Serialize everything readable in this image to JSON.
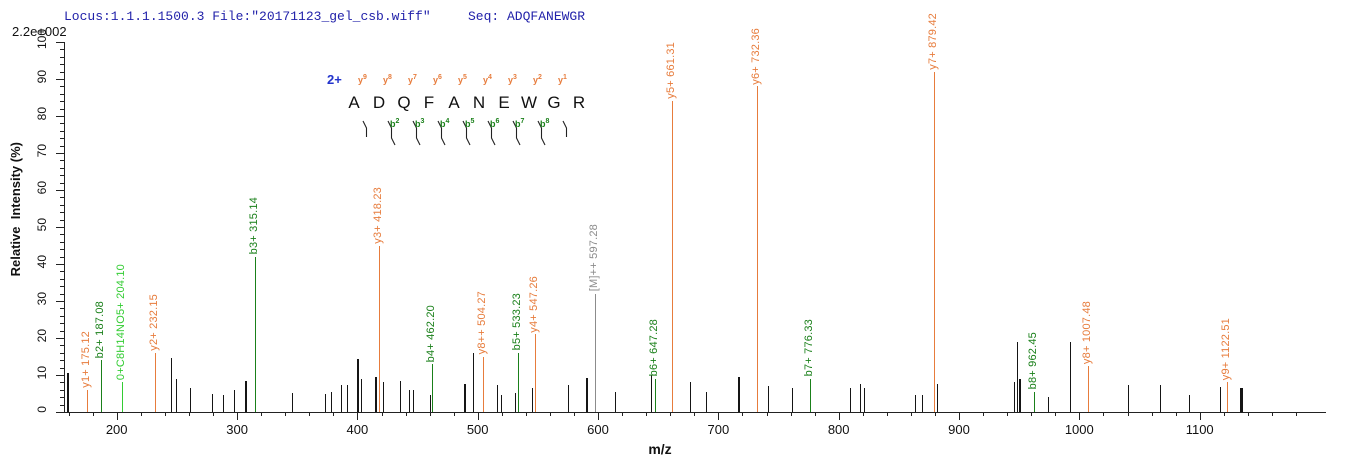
{
  "header": {
    "locus_text": "Locus:1.1.1.1500.3 File:\"20171123_gel_csb.wiff\"",
    "seq_text": "Seq: ADQFANEWGR",
    "intensity_scale": "2.2e+002"
  },
  "sequence_annotation": {
    "charge": "2+",
    "residues": [
      "A",
      "D",
      "Q",
      "F",
      "A",
      "N",
      "E",
      "W",
      "G",
      "R"
    ],
    "boundaries": [
      {
        "y": "y9",
        "b": null
      },
      {
        "y": "y8",
        "b": "b2"
      },
      {
        "y": "y7",
        "b": "b3"
      },
      {
        "y": "y6",
        "b": "b4"
      },
      {
        "y": "y5",
        "b": "b5"
      },
      {
        "y": "y4",
        "b": "b6"
      },
      {
        "y": "y3",
        "b": "b7"
      },
      {
        "y": "y2",
        "b": "b8"
      },
      {
        "y": "y1",
        "b": null
      }
    ]
  },
  "axes": {
    "x": {
      "title": "m/z",
      "min": 157,
      "max": 1200,
      "major_ticks": [
        200,
        300,
        400,
        500,
        600,
        700,
        800,
        900,
        1000,
        1100
      ],
      "minor_start": 160,
      "minor_end": 1180,
      "minor_step": 20
    },
    "y": {
      "title": "Relative  Intensity (%)",
      "min": 0,
      "max": 100,
      "major_step": 10,
      "minor_step": 2,
      "major_ticks": [
        0,
        10,
        20,
        30,
        40,
        50,
        60,
        70,
        80,
        90,
        100
      ]
    }
  },
  "colors": {
    "y_ion": "#e77c3c",
    "b_ion": "#1a801a",
    "neutral_loss": "#33cc33",
    "precursor": "#8c8c8c",
    "unassigned": "#151515",
    "header_text": "#2222aa",
    "charge_label": "#2233cc",
    "axis": "#222222"
  },
  "chart_data": {
    "type": "bar",
    "kind": "MS/MS fragment stick spectrum",
    "title": "Locus:1.1.1.1500.3 File:\"20171123_gel_csb.wiff\" Seq: ADQFANEWGR",
    "xlabel": "m/z",
    "ylabel": "Relative  Intensity (%)",
    "xlim": [
      157,
      1200
    ],
    "ylim": [
      0,
      100
    ],
    "grid": false,
    "legend": false,
    "type_legend": {
      "y": "y-ion",
      "b": "b-ion",
      "n": "neutral-loss",
      "p": "precursor",
      "u": "unassigned"
    },
    "peaks": [
      {
        "mz": 159,
        "i": 10.5,
        "t": "u",
        "w": 2
      },
      {
        "mz": 175.12,
        "i": 6,
        "t": "y",
        "label": "y1+ 175.12"
      },
      {
        "mz": 187.08,
        "i": 14,
        "t": "b",
        "label": "b2+ 187.08"
      },
      {
        "mz": 204.1,
        "i": 8,
        "t": "n",
        "label": "0+C8H14NO5+ 204.10"
      },
      {
        "mz": 232.15,
        "i": 16,
        "t": "y",
        "label": "y2+ 232.15"
      },
      {
        "mz": 245,
        "i": 14.5,
        "t": "u"
      },
      {
        "mz": 249,
        "i": 9,
        "t": "u"
      },
      {
        "mz": 261,
        "i": 6.5,
        "t": "u"
      },
      {
        "mz": 279,
        "i": 5,
        "t": "u"
      },
      {
        "mz": 288,
        "i": 4.7,
        "t": "u"
      },
      {
        "mz": 297,
        "i": 6,
        "t": "u"
      },
      {
        "mz": 307,
        "i": 8.3,
        "t": "u",
        "w": 2
      },
      {
        "mz": 315.14,
        "i": 42,
        "t": "b",
        "label": "b3+ 315.14"
      },
      {
        "mz": 346,
        "i": 5.2,
        "t": "u"
      },
      {
        "mz": 373,
        "i": 5,
        "t": "u"
      },
      {
        "mz": 378,
        "i": 5.5,
        "t": "u"
      },
      {
        "mz": 386,
        "i": 7.3,
        "t": "u"
      },
      {
        "mz": 391,
        "i": 7.3,
        "t": "u"
      },
      {
        "mz": 400,
        "i": 14.3,
        "t": "u",
        "w": 2
      },
      {
        "mz": 403,
        "i": 9,
        "t": "u"
      },
      {
        "mz": 415,
        "i": 9.5,
        "t": "u",
        "w": 2
      },
      {
        "mz": 418.23,
        "i": 45,
        "t": "y",
        "label": "y3+ 418.23"
      },
      {
        "mz": 421,
        "i": 8,
        "t": "u"
      },
      {
        "mz": 435,
        "i": 8.5,
        "t": "u"
      },
      {
        "mz": 443,
        "i": 6,
        "t": "u"
      },
      {
        "mz": 446,
        "i": 6,
        "t": "u"
      },
      {
        "mz": 460,
        "i": 4.7,
        "t": "u"
      },
      {
        "mz": 462.2,
        "i": 13,
        "t": "b",
        "label": "b4+ 462.20"
      },
      {
        "mz": 489,
        "i": 7.5,
        "t": "u",
        "w": 2
      },
      {
        "mz": 496,
        "i": 16,
        "t": "u"
      },
      {
        "mz": 504.27,
        "i": 15,
        "t": "y",
        "label": "y8++ 504.27"
      },
      {
        "mz": 516,
        "i": 7.4,
        "t": "u"
      },
      {
        "mz": 519,
        "i": 4.7,
        "t": "u"
      },
      {
        "mz": 531,
        "i": 5.2,
        "t": "u"
      },
      {
        "mz": 533.23,
        "i": 16,
        "t": "b",
        "label": "b5+ 533.23"
      },
      {
        "mz": 545,
        "i": 6.6,
        "t": "u"
      },
      {
        "mz": 547.26,
        "i": 21,
        "t": "y",
        "label": "y4+ 547.26"
      },
      {
        "mz": 575,
        "i": 7.4,
        "t": "u"
      },
      {
        "mz": 590,
        "i": 9.3,
        "t": "u",
        "w": 2
      },
      {
        "mz": 597.28,
        "i": 32,
        "t": "p",
        "label": "[M]++ 597.28"
      },
      {
        "mz": 614,
        "i": 5.5,
        "t": "u"
      },
      {
        "mz": 644,
        "i": 10,
        "t": "u"
      },
      {
        "mz": 647.28,
        "i": 9,
        "t": "b",
        "label": "b6+ 647.28"
      },
      {
        "mz": 661.31,
        "i": 84,
        "t": "y",
        "label": "y5+ 661.31"
      },
      {
        "mz": 676,
        "i": 8,
        "t": "u"
      },
      {
        "mz": 690,
        "i": 5.5,
        "t": "u"
      },
      {
        "mz": 717,
        "i": 9.5,
        "t": "u",
        "w": 2
      },
      {
        "mz": 732.36,
        "i": 88,
        "t": "y",
        "label": "y6+ 732.36"
      },
      {
        "mz": 741,
        "i": 7,
        "t": "u"
      },
      {
        "mz": 761,
        "i": 6.5,
        "t": "u"
      },
      {
        "mz": 776.33,
        "i": 9,
        "t": "b",
        "label": "b7+ 776.33"
      },
      {
        "mz": 809,
        "i": 6.5,
        "t": "u"
      },
      {
        "mz": 818,
        "i": 7.5,
        "t": "u"
      },
      {
        "mz": 821,
        "i": 6.5,
        "t": "u"
      },
      {
        "mz": 863,
        "i": 4.5,
        "t": "u"
      },
      {
        "mz": 869,
        "i": 4.5,
        "t": "u"
      },
      {
        "mz": 879.42,
        "i": 92,
        "t": "y",
        "label": "y7+ 879.42"
      },
      {
        "mz": 882,
        "i": 7.5,
        "t": "u"
      },
      {
        "mz": 946,
        "i": 8,
        "t": "u"
      },
      {
        "mz": 948,
        "i": 19,
        "t": "u"
      },
      {
        "mz": 950,
        "i": 9,
        "t": "u",
        "w": 2
      },
      {
        "mz": 962.45,
        "i": 5.5,
        "t": "b",
        "label": "b8+ 962.45"
      },
      {
        "mz": 974,
        "i": 4.2,
        "t": "u"
      },
      {
        "mz": 992,
        "i": 19,
        "t": "u"
      },
      {
        "mz": 1007.48,
        "i": 12.5,
        "t": "y",
        "label": "y8+ 1007.48"
      },
      {
        "mz": 1040,
        "i": 7.4,
        "t": "u"
      },
      {
        "mz": 1067,
        "i": 7.4,
        "t": "u"
      },
      {
        "mz": 1091,
        "i": 4.7,
        "t": "u"
      },
      {
        "mz": 1117,
        "i": 6.8,
        "t": "u"
      },
      {
        "mz": 1122.51,
        "i": 8,
        "t": "y",
        "label": "y9+ 1122.51"
      },
      {
        "mz": 1134,
        "i": 6.5,
        "t": "u",
        "w": 3
      }
    ]
  }
}
